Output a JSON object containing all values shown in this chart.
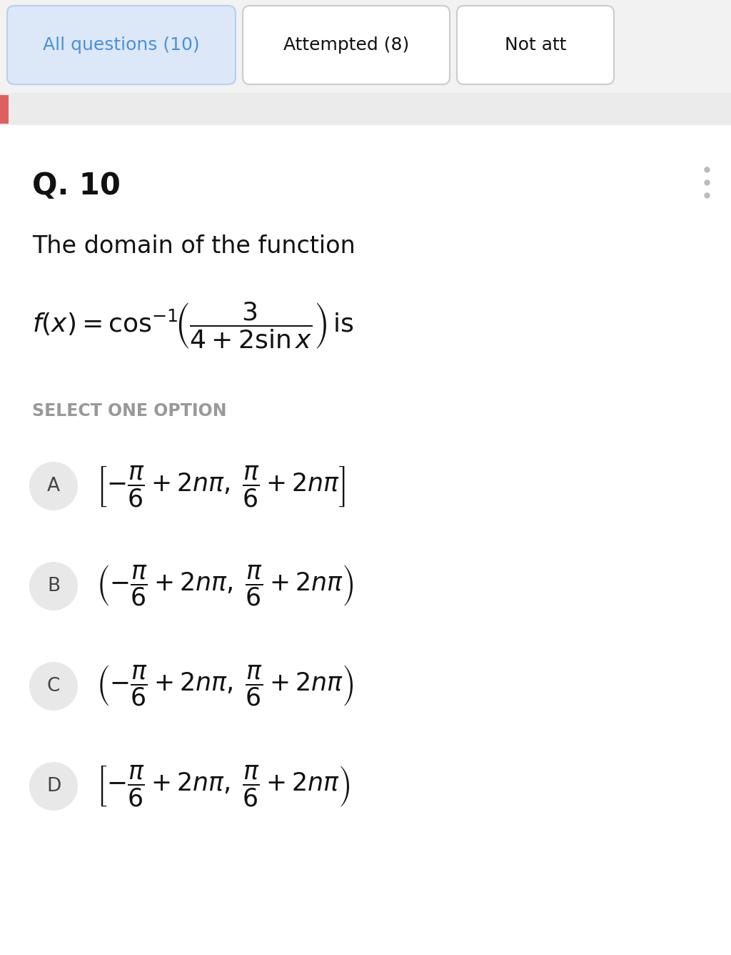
{
  "background_color": "#ffffff",
  "tab1_text": "All questions (10)",
  "tab1_color": "#4a90d9",
  "tab1_bg": "#dce8f8",
  "tab1_border": "#b8d0ec",
  "tab2_text": "Attempted (8)",
  "tab3_text": "Not att",
  "tab_border_color": "#cccccc",
  "tab_bg_white": "#ffffff",
  "header_bg": "#f2f2f2",
  "separator_color": "#e0e0e0",
  "red_bar_color": "#e06060",
  "question_number": "Q. 10",
  "question_text": "The domain of the function",
  "select_text": "SELECT ONE OPTION",
  "select_color": "#999999",
  "dots_color": "#bbbbbb",
  "option_circle_bg": "#e8e8e8",
  "option_circle_border": "#d0d0d0",
  "option_label_color": "#444444",
  "text_color": "#111111"
}
